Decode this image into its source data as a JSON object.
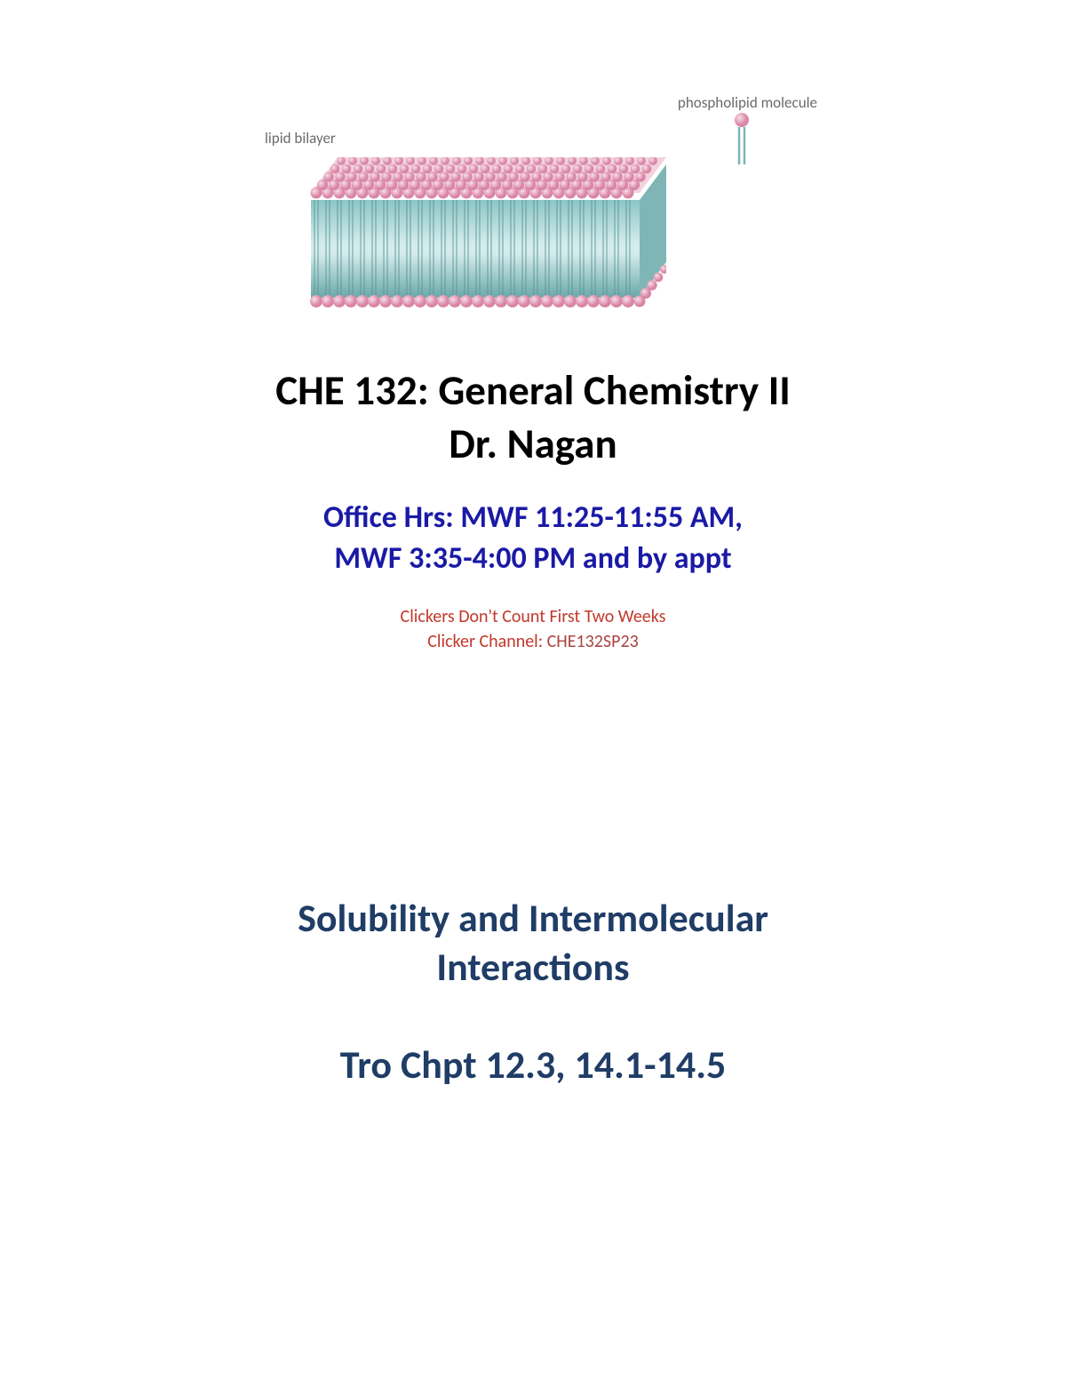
{
  "diagram": {
    "label_bilayer": "lipid bilayer",
    "label_molecule": "phospholipid molecule",
    "head_color": "#e8a0b8",
    "head_highlight": "#f5d0dd",
    "tail_color": "#7db5b5",
    "tail_dark": "#5a9595",
    "label_color": "#6b6b6b"
  },
  "title": {
    "line1": "CHE 132: General Chemistry II",
    "line2": "Dr. Nagan",
    "color": "#000000",
    "fontsize": 47
  },
  "office_hours": {
    "line1": "Office Hrs: MWF 11:25-11:55 AM,",
    "line2": "MWF 3:35-4:00 PM and by appt",
    "color": "#1a1aa6",
    "fontsize": 34
  },
  "clicker": {
    "note": "Clickers Don't Count First Two Weeks",
    "channel_label": "Clicker Channel: ",
    "channel_value": "CHE132SP23",
    "color": "#c0392b",
    "fontsize": 20
  },
  "topic": {
    "line1": "Solubility and Intermolecular",
    "line2": "Interactions",
    "color": "#1f3d66",
    "fontsize": 44
  },
  "chapter": {
    "text": "Tro Chpt 12.3, 14.1-14.5",
    "color": "#1f3d66",
    "fontsize": 44
  },
  "background_color": "#ffffff"
}
